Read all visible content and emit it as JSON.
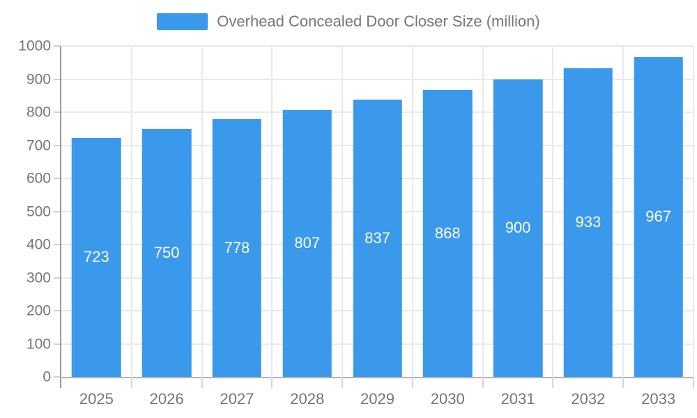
{
  "legend": {
    "label": "Overhead Concealed Door Closer Size (million)"
  },
  "colors": {
    "bar": "#3B99EC",
    "value_label": "#ffffff",
    "axis_text": "#757575",
    "gridline": "#e9e9e9",
    "axis_line_y": "#9a9a9a",
    "axis_line_x": "#b3b3b3"
  },
  "chart_data": {
    "type": "bar",
    "title": "Overhead Concealed Door Closer Size (million)",
    "categories": [
      "2025",
      "2026",
      "2027",
      "2028",
      "2029",
      "2030",
      "2031",
      "2032",
      "2033"
    ],
    "values": [
      723,
      750,
      778,
      807,
      837,
      868,
      900,
      933,
      967
    ],
    "xlabel": "",
    "ylabel": "",
    "ylim": [
      0,
      1000
    ],
    "ytick_step": 100,
    "yticks": [
      0,
      100,
      200,
      300,
      400,
      500,
      600,
      700,
      800,
      900,
      1000
    ],
    "grid": true,
    "legend_position": "top",
    "value_labels": "inside-middle"
  }
}
